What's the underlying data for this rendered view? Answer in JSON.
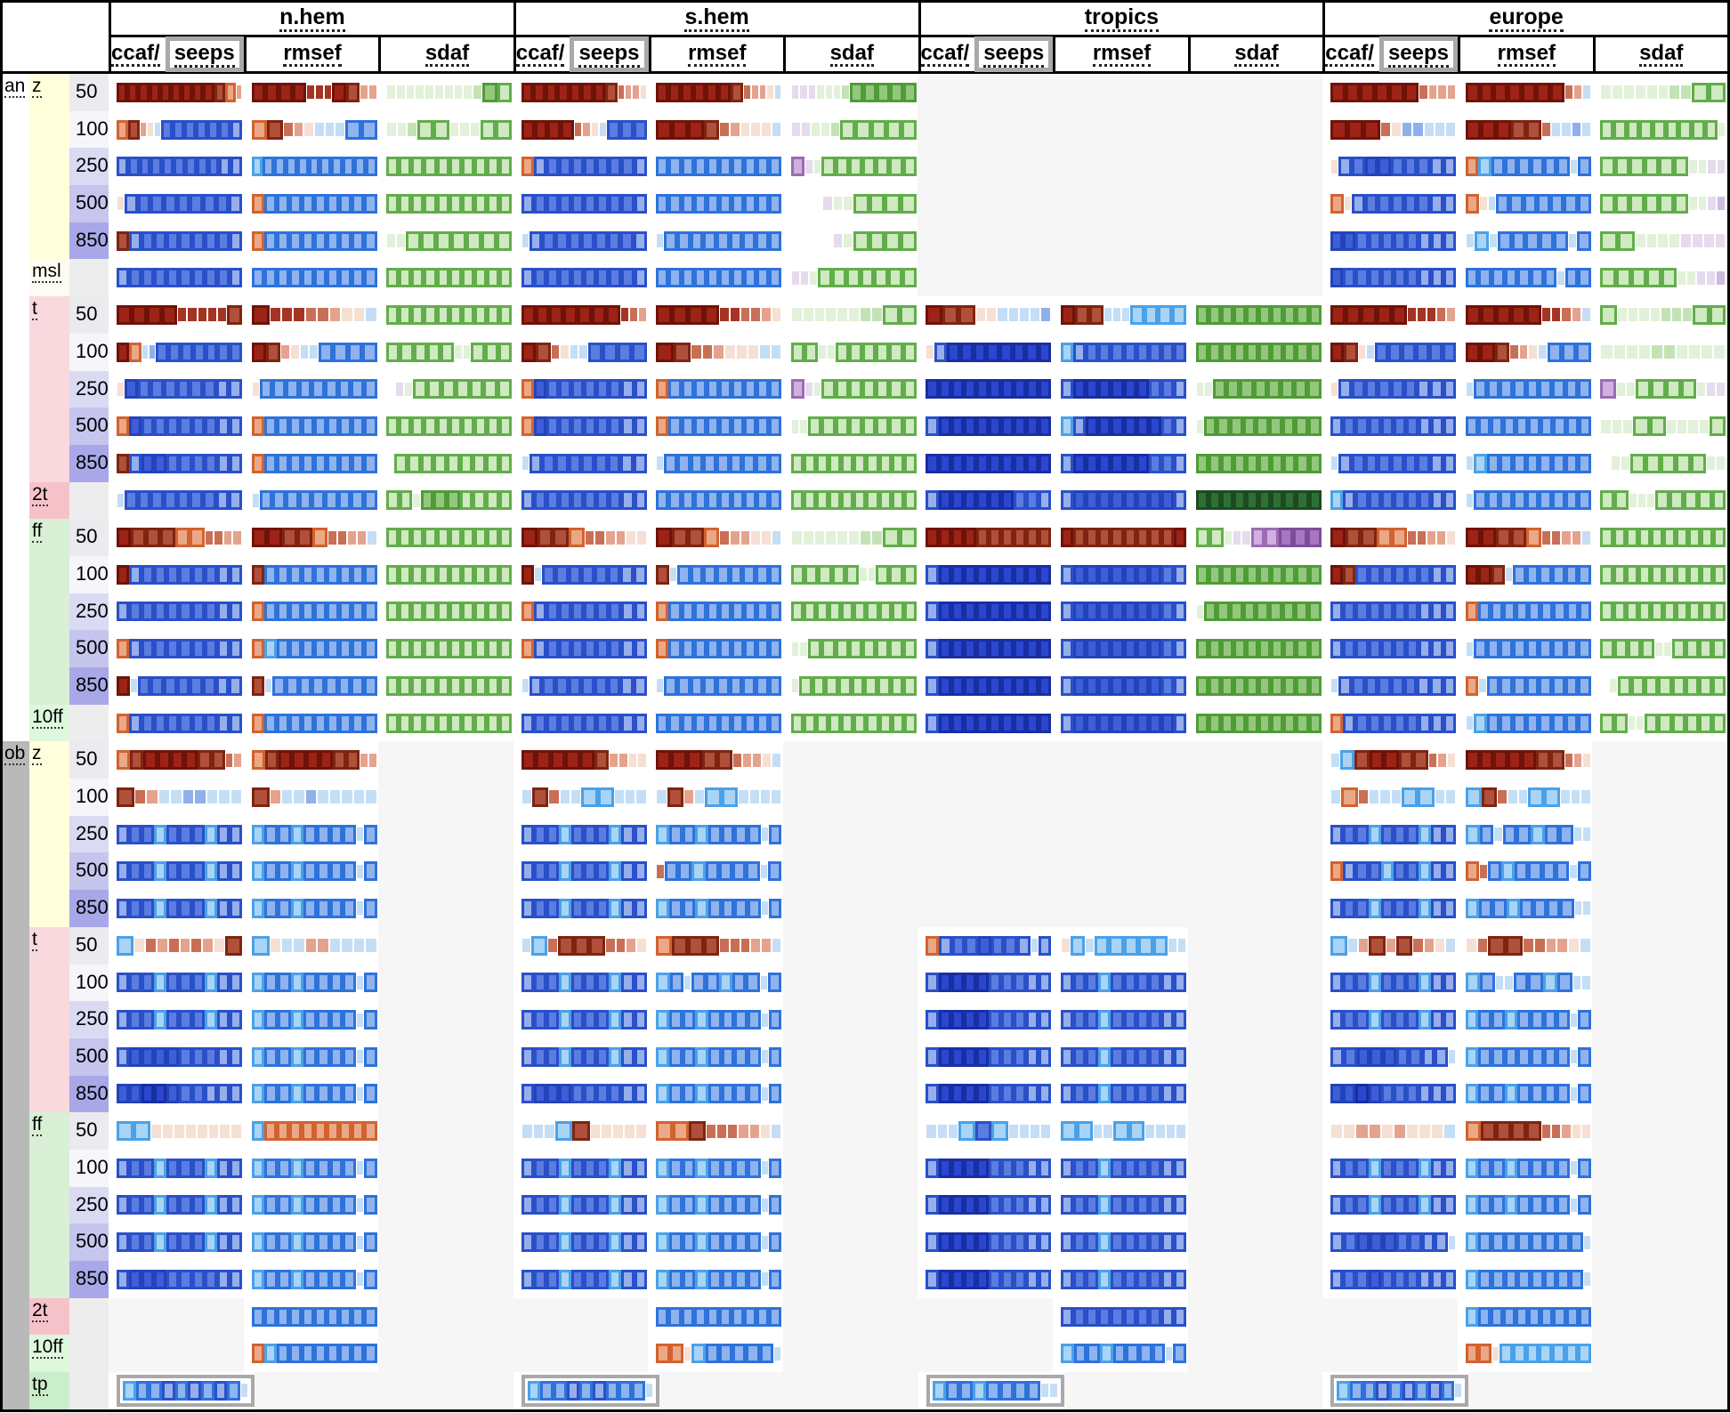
{
  "header": {
    "regions": [
      "n.hem",
      "s.hem",
      "tropics",
      "europe"
    ],
    "ccaf_label": "ccaf/",
    "seeps_label": "seeps",
    "rmsef_label": "rmsef",
    "sdaf_label": "sdaf"
  },
  "colors": {
    "var_bg": {
      "z": "#ffffdb",
      "msl": "#fcfcf2",
      "t": "#f9d9de",
      "2t": "#f6c2ca",
      "ff": "#d9efd6",
      "10ff": "#ddf8dd",
      "tp": "#c9eec9"
    },
    "level_bg": {
      "50": "#eaeaef",
      "100": "#f6f6fa",
      "250": "#dadaf3",
      "500": "#c5c5ee",
      "850": "#a8a8e8",
      "-": "#ededed"
    },
    "group_bg": {
      "an": "#ffffff",
      "ob": "#b9b9b9"
    },
    "empty_cell": "#f6f6f6",
    "frame": "#a9a9a9"
  },
  "palette": {
    "R": {
      "f": "#9d2317",
      "b": "#6f1208"
    },
    "S": {
      "f": "#b0503a",
      "b": "#7e2411"
    },
    "O": {
      "f": "#eaa887",
      "b": "#d2622e"
    },
    "d": {
      "f": "#a53423"
    },
    "r": {
      "f": "#c96f55"
    },
    "q": {
      "f": "#e5a38d"
    },
    "p": {
      "f": "#f5e0d3"
    },
    "B": {
      "f": "#5b7ce0",
      "b": "#2950c8"
    },
    "N": {
      "f": "#3d5ed6",
      "b": "#2343bb"
    },
    "D": {
      "f": "#2b46cf",
      "b": "#182ea3"
    },
    "K": {
      "f": "#96aeec",
      "b": "#2950c8"
    },
    "L": {
      "f": "#8fb3ef",
      "b": "#2e72da"
    },
    "C": {
      "f": "#a9d4f5",
      "b": "#4aa1e8"
    },
    "b": {
      "f": "#c4def5"
    },
    "m": {
      "f": "#8fb0ea"
    },
    "G": {
      "f": "#cfe9c1",
      "b": "#62ad4b"
    },
    "H": {
      "f": "#94c77e",
      "b": "#4f9c37"
    },
    "E": {
      "f": "#2e6f35",
      "b": "#1c4a21"
    },
    "g": {
      "f": "#e2f1d9"
    },
    "h": {
      "f": "#c4e3b5"
    },
    "P": {
      "f": "#a877c2",
      "b": "#7c4e99"
    },
    "V": {
      "f": "#cfb0de",
      "b": "#9b6cb4"
    },
    "u": {
      "f": "#e6daee"
    },
    "v": {
      "f": "#cebbdd"
    }
  },
  "rows": [
    {
      "g": "an",
      "v": "z",
      "l": "50",
      "cells": [
        "RRRRRRRRRSOq",
        "RRRRdddRSqq",
        "ggggggggghHG",
        "RRRRRRRSrqqp",
        "RRRRRRSrqqpb",
        "uuuggghHHHHH",
        "",
        "",
        "",
        "RRRRRRrqqq",
        "RRRRRRRrqb",
        "gggggghhGG"
      ]
    },
    {
      "g": "an",
      "v": "z",
      "l": "100",
      "cells": [
        "OSqpbBBBBBBK",
        "OSrqpbbbLL",
        "gghGGgggGG",
        "RRRRrqpbBBB",
        "RRRSrqpppb",
        "uugghGGGGG",
        "",
        "",
        "",
        "RRRrpmmbbb",
        "RRRSSrbbmb",
        "GGGGGGGGGg"
      ]
    },
    {
      "g": "an",
      "v": "z",
      "l": "250",
      "cells": [
        "KBBBBBBBBKK",
        "CLLLLLLLLLL",
        "GGGGGGGGGG",
        "OKBBBBBBBK",
        "LLLLLLLLLL",
        "VugGGGGGGG",
        "",
        "",
        "",
        "pKBNNBBBKK",
        "OCLLLLLLbL",
        "GGGGGGgguu"
      ]
    },
    {
      "g": "an",
      "v": "z",
      "l": "500",
      "cells": [
        "pKBBBBBBBK",
        "OLLLLLLLLL",
        "GGGGGGGGGG",
        "KBBBBBBBBK",
        "LLLLLLLLLL",
        "UUUuggGGGG",
        "",
        "",
        "",
        "OpKBBBBBKK",
        "OpbLLLLLLL",
        "GGGGGGgguv"
      ]
    },
    {
      "g": "an",
      "v": "z",
      "l": "850",
      "cells": [
        "SKBBBBBBBK",
        "OLLLLLLLLL",
        "ggGGGGGGG",
        "bKBBBBBBBK",
        "bLLLLLLLLL",
        "UUUUugGGGG",
        "",
        "",
        "",
        "NNBBBBBKKK",
        "bCbLLLLLbL",
        "GGgggguuuu"
      ]
    },
    {
      "g": "an",
      "v": "msl",
      "l": "",
      "cells": [
        "KBBBBBBBBK",
        "LLLLLLLLLL",
        "GGGGGGGGGG",
        "KBBBBBBBBK",
        "LLLLLLLLLL",
        "uugGGGGGGG",
        "",
        "",
        "",
        "NBBBBBBKKK",
        "LLLLLLLbLL",
        "GGGGGgguuv"
      ]
    },
    {
      "g": "an",
      "v": "t",
      "l": "50",
      "cells": [
        "RRRRdddddS",
        "Rdddrrqppb",
        "GGGGGGGGGG",
        "RRRRRRRdrq",
        "RRRRddrrqp",
        "gggggghhGG",
        "RSSppbbbbm",
        "RSSbbbCCCC",
        "HHHHHHHHHH",
        "RRRRRdddrq",
        "RRRRRddrqb",
        "GgggghhhGG"
      ]
    },
    {
      "g": "an",
      "v": "t",
      "l": "100",
      "cells": [
        "RObmBBBBBBB",
        "RSqpbbLLLL",
        "GGGGGggGGG",
        "RSrpbbBBBB",
        "RSrrqpppbb",
        "GGggGGGGGG",
        "pKDDDDDDDD",
        "CKBBBBBBBB",
        "HHHHHHHHHH",
        "RSpbBBBBBB",
        "RRSrqpbLLL",
        "gggghhgggg"
      ]
    },
    {
      "g": "an",
      "v": "t",
      "l": "250",
      "cells": [
        "pNBBBBBBKK",
        "pLLLLLLLLL",
        "UugGGGGGGG",
        "ONBBBBBBKK",
        "OLLLLLLLLL",
        "VugGGGGGGG",
        "DDDDDDDDDD",
        "KDDDDDDBBK",
        "ggHHHHHHHH",
        "pKBBBBBKKK",
        "bLLLLLLLLL",
        "VggGGGGguu"
      ]
    },
    {
      "g": "an",
      "v": "t",
      "l": "500",
      "cells": [
        "ONBBBBBBKK",
        "OLLLLLLLLL",
        "GGGGGGGGGG",
        "ONBBBBBBKK",
        "OLLLLLLLLL",
        "ggGGGGGGGG",
        "KDDDDDDDDD",
        "CKDDDDDDBK",
        "gHHHHHHHHH",
        "KBBBBBBKKK",
        "LLLLLLLLLL",
        "gggGGggggG"
      ]
    },
    {
      "g": "an",
      "v": "t",
      "l": "850",
      "cells": [
        "SKNNBBBBKK",
        "OLLLLLLLLL",
        "UGGGGGGGGG",
        "bKBBBBBBKK",
        "bLLLLLLLLL",
        "GGGGGGGGGG",
        "DDDDDDDDDD",
        "KDDDDDDBBK",
        "HHHHHHHHHH",
        "bKBBBBBBKK",
        "bCLLLLLLLL",
        "UggGGGGGgg"
      ]
    },
    {
      "g": "an",
      "v": "2t",
      "l": "",
      "cells": [
        "bBBBBBBBKK",
        "bLLLLLLLLL",
        "GGgHHHGGGG",
        "KBBBBBBBKK",
        "LLLLLLLLLL",
        "GGGGGGGGGG",
        "KDDDDDDBBK",
        "KNNNNNNNNK",
        "EEEEEEEEEE",
        "CKBBBBBBKK",
        "bLLLLLLLLL",
        "GGgggGGGGG"
      ]
    },
    {
      "g": "an",
      "v": "ff",
      "l": "50",
      "cells": [
        "RSSSOOrrqq",
        "RRSSOrrqqb",
        "GGGGGGGGGG",
        "RSSOrrqqpp",
        "RSSOrqqppb",
        "gggggghhGG",
        "RRRRSSSSSS",
        "RSSSSSSSSR",
        "GGguuVVPPP",
        "RSSOOrrqqp",
        "RRSSOrrqqb",
        "GGGGGGGGGG"
      ]
    },
    {
      "g": "an",
      "v": "ff",
      "l": "100",
      "cells": [
        "RKBBBBBBKK",
        "SLLLLLLLLL",
        "GGGGGGGGGG",
        "RbBBBBBBKK",
        "SbLLLLLLLL",
        "GGGGGggGGG",
        "KDDDDDDDDD",
        "KNNNNNNNBK",
        "HHHHHHHHHH",
        "RSBBBBBBKK",
        "RRSbLLLLLL",
        "GGGGGGGGGG"
      ]
    },
    {
      "g": "an",
      "v": "ff",
      "l": "250",
      "cells": [
        "KBBBBBBBKK",
        "OLLLLLLLLL",
        "GGGGGGGGGG",
        "OKBBBBBBKK",
        "OLLLLLLLLL",
        "GGGGGGGGGG",
        "KDDDDDDDDD",
        "KNNNNNNNBK",
        "gHHHHHHHHH",
        "KBBBBBBKKK",
        "OLLLLLLLLL",
        "GGGGGGGGGG"
      ]
    },
    {
      "g": "an",
      "v": "ff",
      "l": "500",
      "cells": [
        "OKBBBBBBKK",
        "OCLLLLLLLL",
        "GGGGGGGGGG",
        "OKBBBBBBKK",
        "OLLLLLLLLL",
        "ggGGGGGGGG",
        "KDDDDDDDDD",
        "KNNNNNNNBK",
        "HHHHHHHHHH",
        "KBBBBBBKKK",
        "bLLLLLLLLL",
        "GGGGggGGGG"
      ]
    },
    {
      "g": "an",
      "v": "ff",
      "l": "850",
      "cells": [
        "RbBBBBBBKK",
        "SbLLLLLLLL",
        "GGGGGGGGGG",
        "bKBBBBBBKK",
        "bLLLLLLLLL",
        "gGGGGGGGGG",
        "KDDDDDDDDD",
        "KNNNNNNNBK",
        "HHHHHHHHHH",
        "bKBBBBBKKK",
        "ObLLLLLLLL",
        "UgGGGGGGGG"
      ]
    },
    {
      "g": "an",
      "v": "10ff",
      "l": "",
      "cells": [
        "OKBBBBBBKK",
        "OLLLLLLLLL",
        "GGGGGGGGGG",
        "KBBBBBBBKK",
        "LLLLLLLLLL",
        "GGGGGGGGGG",
        "KDDDDDDDDD",
        "KNNNNNNNNK",
        "HHHHHHHHHH",
        "OKBBBBBKKK",
        "bCLLLLLLLL",
        "GGggGGGGGG"
      ]
    },
    {
      "g": "ob",
      "v": "z",
      "l": "50",
      "cells": [
        "OSRRRRSSrq",
        "OSRRRRSSqq",
        "",
        "RRRRRSqqpp",
        "RRRSSrqqpb",
        "",
        "",
        "",
        "",
        "bCSRRSSrqp",
        "RRRRRSSrqp",
        ""
      ]
    },
    {
      "g": "ob",
      "v": "z",
      "l": "100",
      "cells": [
        "Srqbbmmbbb",
        "Sqbbmbbbbb",
        "",
        "bSrbbCCbbb",
        "bSqbCCbbbb",
        "",
        "",
        "",
        "",
        "bOrbbbCCbb",
        "CSrbbCCbbb",
        ""
      ]
    },
    {
      "g": "ob",
      "v": "z",
      "l": "250",
      "cells": [
        "KBBCBBBCKK",
        "CLLCLLLLbL",
        "",
        "KBBCBBBCKK",
        "CLLCLLLLbL",
        "",
        "",
        "",
        "",
        "KBBCBBBCKK",
        "CLbLLCLLbb",
        ""
      ]
    },
    {
      "g": "ob",
      "v": "z",
      "l": "500",
      "cells": [
        "KBBCBBBCKK",
        "CLLCLLLLbL",
        "",
        "KBBCBBBCKK",
        "rLLCLLLLbL",
        "",
        "",
        "",
        "",
        "OKBBCBBCKK",
        "OrLCLLLLbL",
        ""
      ]
    },
    {
      "g": "ob",
      "v": "z",
      "l": "850",
      "cells": [
        "KBBCBBBCKK",
        "CLLCLLLLbL",
        "",
        "KBBCBBBCKK",
        "CLLCLLLLbL",
        "",
        "",
        "",
        "",
        "KBBCBBBCKK",
        "CLLCLLLLbb",
        ""
      ]
    },
    {
      "g": "ob",
      "v": "t",
      "l": "50",
      "cells": [
        "CprqrqrqpS",
        "Cpbbqqbbbb",
        "",
        "bCrSSSrrqp",
        "OSSSrrrqqb",
        "",
        "OKBBNBBKbK",
        "pCbCCCCCbb",
        "",
        "CbqSqSrqpb",
        "prSSrrqqpb",
        ""
      ]
    },
    {
      "g": "ob",
      "v": "t",
      "l": "100",
      "cells": [
        "KBBCBBBCKK",
        "CLLCLLLLbL",
        "",
        "KBBCBBBCKK",
        "CLbLLCLLbL",
        "",
        "KDDDDBBBKK",
        "KBBCBBBBKK",
        "",
        "KBBCBBBCKK",
        "CLbbLLCLbb",
        ""
      ]
    },
    {
      "g": "ob",
      "v": "t",
      "l": "250",
      "cells": [
        "KBBCBBBCKK",
        "CLLCLLLLbL",
        "",
        "KBBCBBBCKK",
        "CLLCLLLLbL",
        "",
        "KDDDDBBBKK",
        "KBBCBBBBKK",
        "",
        "KBBCBBBCKK",
        "CLLCLLLLbL",
        ""
      ]
    },
    {
      "g": "ob",
      "v": "t",
      "l": "500",
      "cells": [
        "KNNNNBBBKK",
        "CLLCLLLLbL",
        "",
        "KBBCBBBCKK",
        "CLLCLLLLbL",
        "",
        "KDDDDBBBKK",
        "KBBCBBBBKK",
        "",
        "KBNNNBBKKb",
        "CLLLLLLLbL",
        ""
      ]
    },
    {
      "g": "ob",
      "v": "t",
      "l": "850",
      "cells": [
        "NNDDNBBKKK",
        "CLLCLLLLbL",
        "",
        "KNNNBBBBKK",
        "CLLCLLLLbL",
        "",
        "KDDDDBBBKK",
        "KBBCBBBBKK",
        "",
        "NNDNBBBKKK",
        "CLLCLLLLbL",
        ""
      ]
    },
    {
      "g": "ob",
      "v": "ff",
      "l": "50",
      "cells": [
        "CCpppppppp",
        "COOOOOOOOO",
        "",
        "bbbCSppppp",
        "OOSrrrqqpb",
        "",
        "bbbCBCbbbb",
        "CCbbCCbbbb",
        "",
        "ppqqpqpppb",
        "OSSSSrrqpp",
        ""
      ]
    },
    {
      "g": "ob",
      "v": "ff",
      "l": "100",
      "cells": [
        "KBBCBBBCKK",
        "CLLCLLLLbL",
        "",
        "KBBCBBBCKK",
        "CLLCLLLLbL",
        "",
        "KDDDDBBBKK",
        "KBBCBBBBKK",
        "",
        "KBBCBBBCKK",
        "CLLCLLLLbL",
        ""
      ]
    },
    {
      "g": "ob",
      "v": "ff",
      "l": "250",
      "cells": [
        "KBBCBBBCKK",
        "CLLCLLLLbL",
        "",
        "KBBCBBBCKK",
        "CLLCLLLLbL",
        "",
        "KDDDDBBBKK",
        "KBBCBBBBKK",
        "",
        "KBBCBBBCKK",
        "CLLCLLLLbL",
        ""
      ]
    },
    {
      "g": "ob",
      "v": "ff",
      "l": "500",
      "cells": [
        "KBBCBBBCKK",
        "CLLCLLLLbL",
        "",
        "KBBCBBBCKK",
        "CLLCLLLLbL",
        "",
        "KDDDDBBBKK",
        "KBBCBBBBKK",
        "",
        "KBNNNBBKKb",
        "CLLLLLLLLb",
        ""
      ]
    },
    {
      "g": "ob",
      "v": "ff",
      "l": "850",
      "cells": [
        "KNNNBBBBKK",
        "CLLCLLLLbL",
        "",
        "KBBCBBBCKK",
        "CLLCLLLLbL",
        "",
        "KDDDDBBBKK",
        "KBBCBBBBKK",
        "",
        "KBBNBBBKKK",
        "CLLLLLLLLb",
        ""
      ]
    },
    {
      "g": "ob",
      "v": "2t",
      "l": "",
      "cells": [
        "",
        "LLLLLLLLLL",
        "",
        "",
        "LLLLLLLLLL",
        "",
        "",
        "KBBBBBBBKK",
        "",
        "",
        "CLLLLLLLLL",
        ""
      ]
    },
    {
      "g": "ob",
      "v": "10ff",
      "l": "",
      "cells": [
        "",
        "OCLLLLLLLL",
        "",
        "",
        "OOpCLLLLLb",
        "",
        "",
        "CLLCLLLLbL",
        "",
        "",
        "OOpCCCCCCC",
        ""
      ]
    },
    {
      "g": "ob",
      "v": "tp",
      "l": "",
      "framed": true,
      "cells": [
        "CLLKLKLKLb",
        "",
        "",
        "CLLKLKLLLb",
        "",
        "",
        "CLLCLLLLbb",
        "",
        "",
        "CLLKLKLKLb",
        "",
        ""
      ]
    }
  ]
}
